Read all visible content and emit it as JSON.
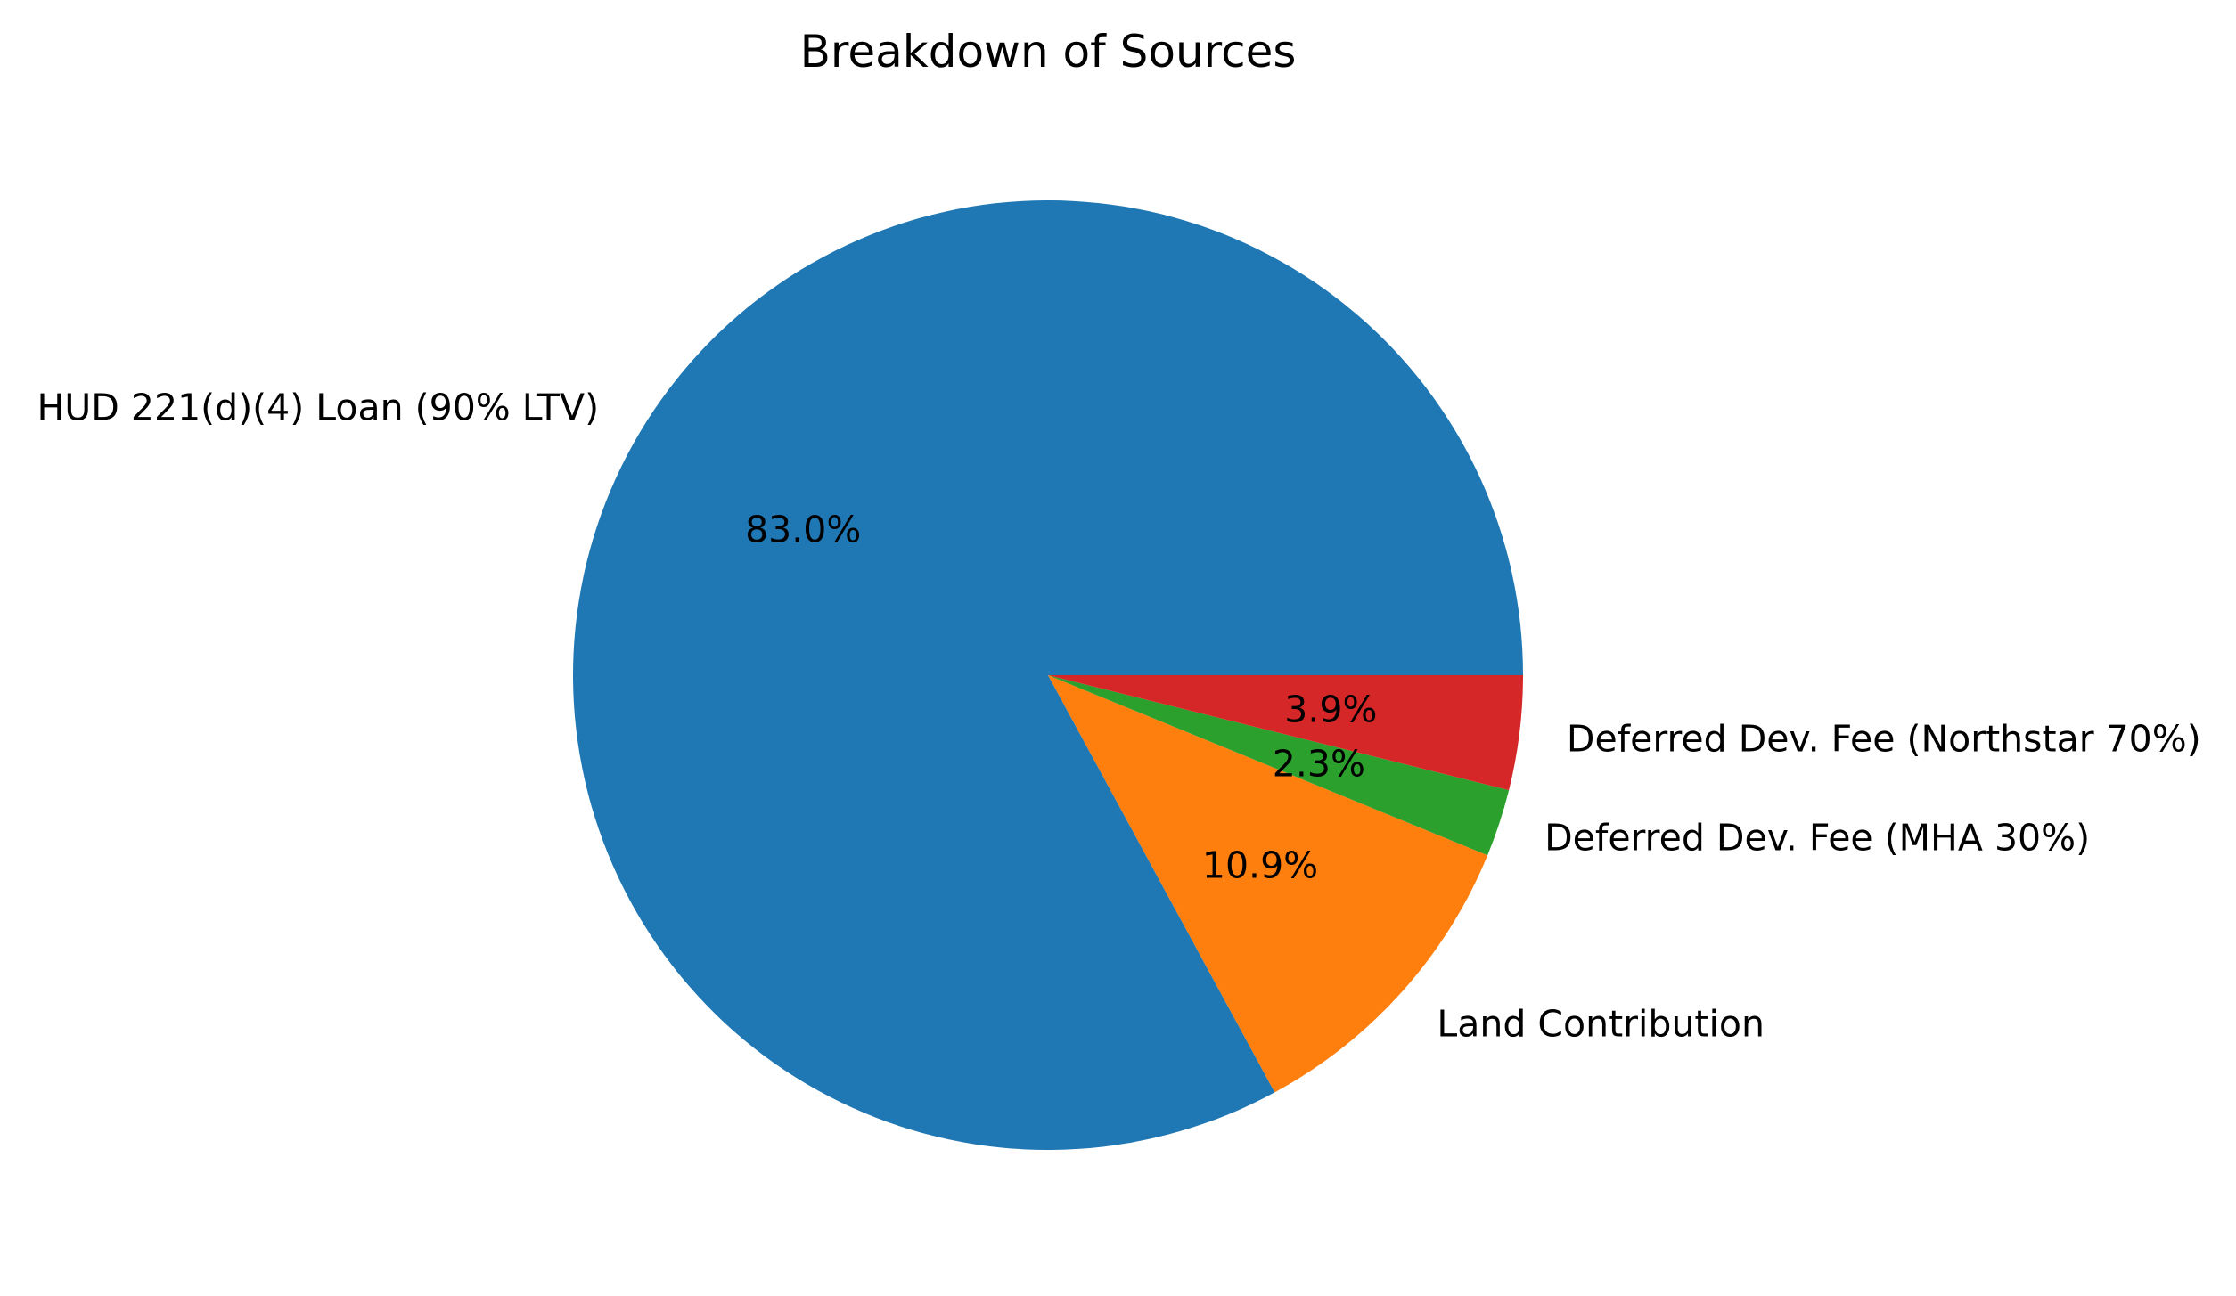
{
  "figure": {
    "background": "#ffffff",
    "text_color": "#000000"
  },
  "chart_data": {
    "type": "pie",
    "title": "Breakdown of Sources",
    "legend": "none",
    "start_angle_deg": 0,
    "direction": "counterclockwise",
    "label_distance": 1.1,
    "pct_distance": 0.6,
    "slices": [
      {
        "label": "HUD 221(d)(4) Loan (90% LTV)",
        "value_pct": 83.0,
        "pct_label": "83.0%",
        "color": "#1f77b4"
      },
      {
        "label": "Land Contribution",
        "value_pct": 10.9,
        "pct_label": "10.9%",
        "color": "#ff7f0e"
      },
      {
        "label": "Deferred Dev. Fee (MHA 30%)",
        "value_pct": 2.3,
        "pct_label": "2.3%",
        "color": "#2ca02c"
      },
      {
        "label": "Deferred Dev. Fee (Northstar 70%)",
        "value_pct": 3.9,
        "pct_label": "3.9%",
        "color": "#d62728"
      }
    ]
  }
}
